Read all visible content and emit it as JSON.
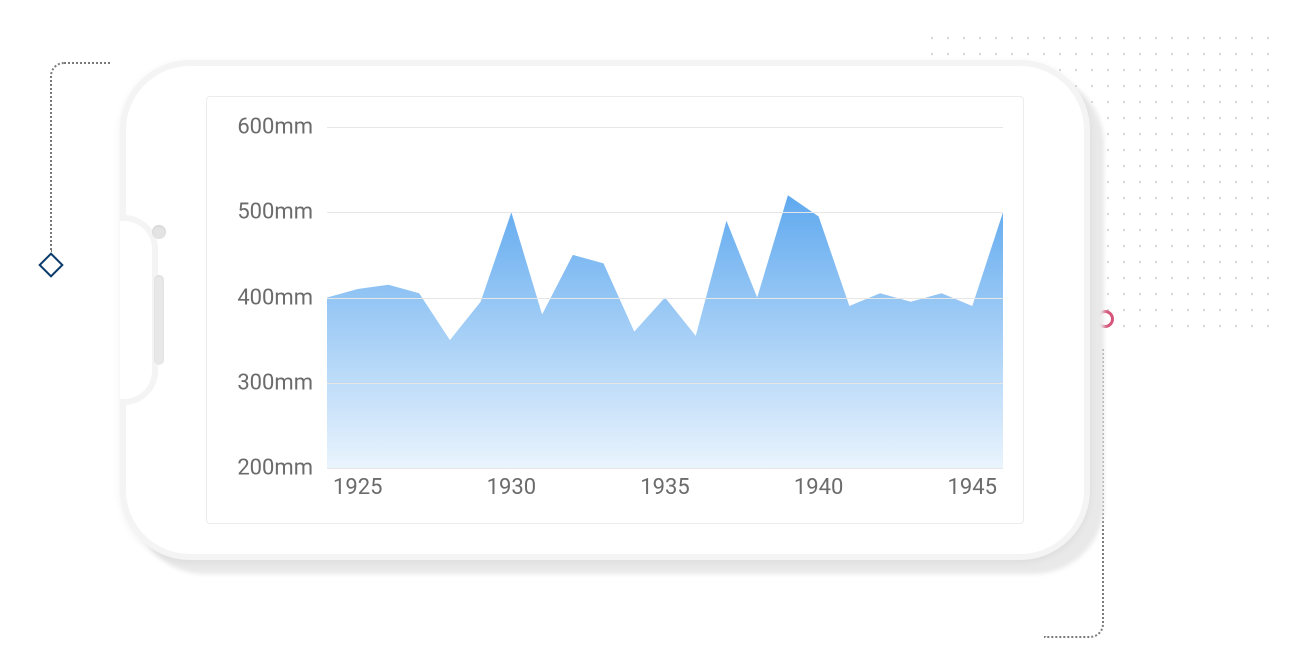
{
  "decor": {
    "dot_grid_color": "#c8c8c8",
    "dotted_line_color": "#7a7a7a",
    "diamond_border": "#0b3b6b",
    "pink_ring_border": "#d6547a"
  },
  "device": {
    "frame_border": "#f4f4f4",
    "shadow": "#e9e9e9",
    "background": "#ffffff",
    "speaker_color": "#e8e8e8",
    "camera_color": "#e3e3e3"
  },
  "chart": {
    "type": "area",
    "background_color": "#ffffff",
    "panel_border": "#ececee",
    "grid_color": "#e6e6e6",
    "axis_label_color": "#6b6b6b",
    "axis_font_size": 22,
    "y_unit_suffix": "mm",
    "ylim": [
      200,
      600
    ],
    "ytick_step": 100,
    "y_ticks": [
      600,
      500,
      400,
      300,
      200
    ],
    "y_tick_labels": [
      "600mm",
      "500mm",
      "400mm",
      "300mm",
      "200mm"
    ],
    "xlim": [
      1924,
      1946
    ],
    "x_tick_step": 5,
    "x_ticks": [
      1925,
      1930,
      1935,
      1940,
      1945
    ],
    "x_tick_labels": [
      "1925",
      "1930",
      "1935",
      "1940",
      "1945"
    ],
    "area_gradient_top": "#5fa9ef",
    "area_gradient_bottom": "#eaf4fd",
    "area_stroke": "#4a97e3",
    "area_stroke_width": 0,
    "series": {
      "x": [
        1924,
        1925,
        1926,
        1927,
        1928,
        1929,
        1930,
        1931,
        1932,
        1933,
        1934,
        1935,
        1936,
        1937,
        1938,
        1939,
        1940,
        1941,
        1942,
        1943,
        1944,
        1945,
        1946
      ],
      "y": [
        400,
        410,
        415,
        405,
        350,
        395,
        500,
        380,
        450,
        440,
        360,
        400,
        355,
        490,
        400,
        520,
        495,
        390,
        405,
        395,
        405,
        390,
        500
      ]
    }
  }
}
